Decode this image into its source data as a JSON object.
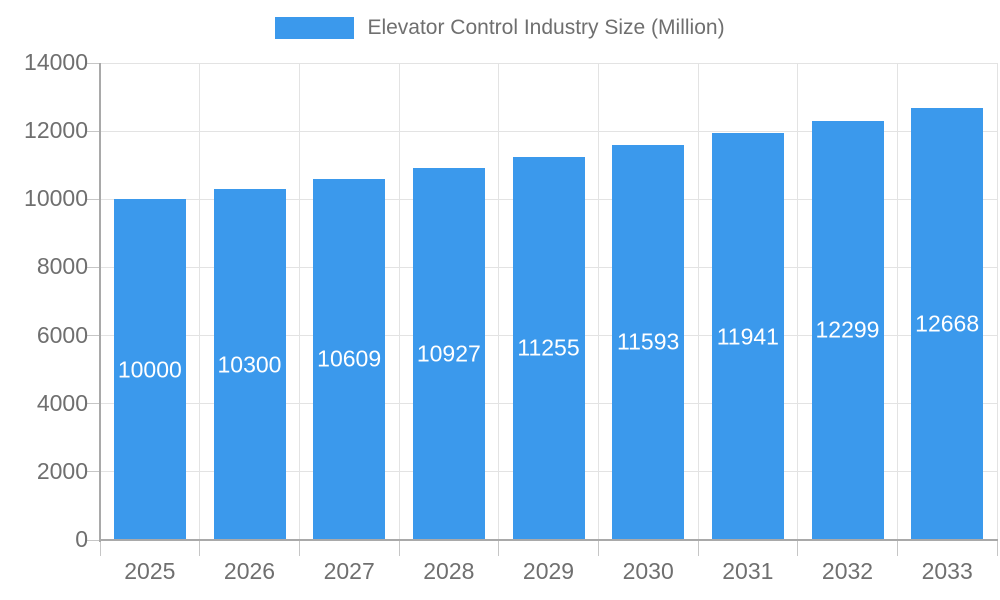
{
  "legend": {
    "label": "Elevator Control Industry Size (Million)"
  },
  "chart_data": {
    "type": "bar",
    "title": "Elevator Control Industry Size (Million)",
    "categories": [
      "2025",
      "2026",
      "2027",
      "2028",
      "2029",
      "2030",
      "2031",
      "2032",
      "2033"
    ],
    "values": [
      10000,
      10300,
      10609,
      10927,
      11255,
      11593,
      11941,
      12299,
      12668
    ],
    "series": [
      {
        "name": "Elevator Control Industry Size (Million)",
        "values": [
          10000,
          10300,
          10609,
          10927,
          11255,
          11593,
          11941,
          12299,
          12668
        ]
      }
    ],
    "value_labels_shown": true,
    "xlabel": "",
    "ylabel": "",
    "ylim": [
      0,
      14000
    ],
    "yticks": [
      0,
      2000,
      4000,
      6000,
      8000,
      10000,
      12000,
      14000
    ],
    "grid": true,
    "legend_position": "top-center",
    "colors": {
      "bar": "#3B99EC",
      "value_label": "#FFFFFF",
      "grid_line": "#E3E3E3",
      "axis_line": "#A9A9A9",
      "tick_line": "#C6C6C6",
      "tick_label": "#6F6F6F",
      "background": "#FFFFFF"
    }
  }
}
